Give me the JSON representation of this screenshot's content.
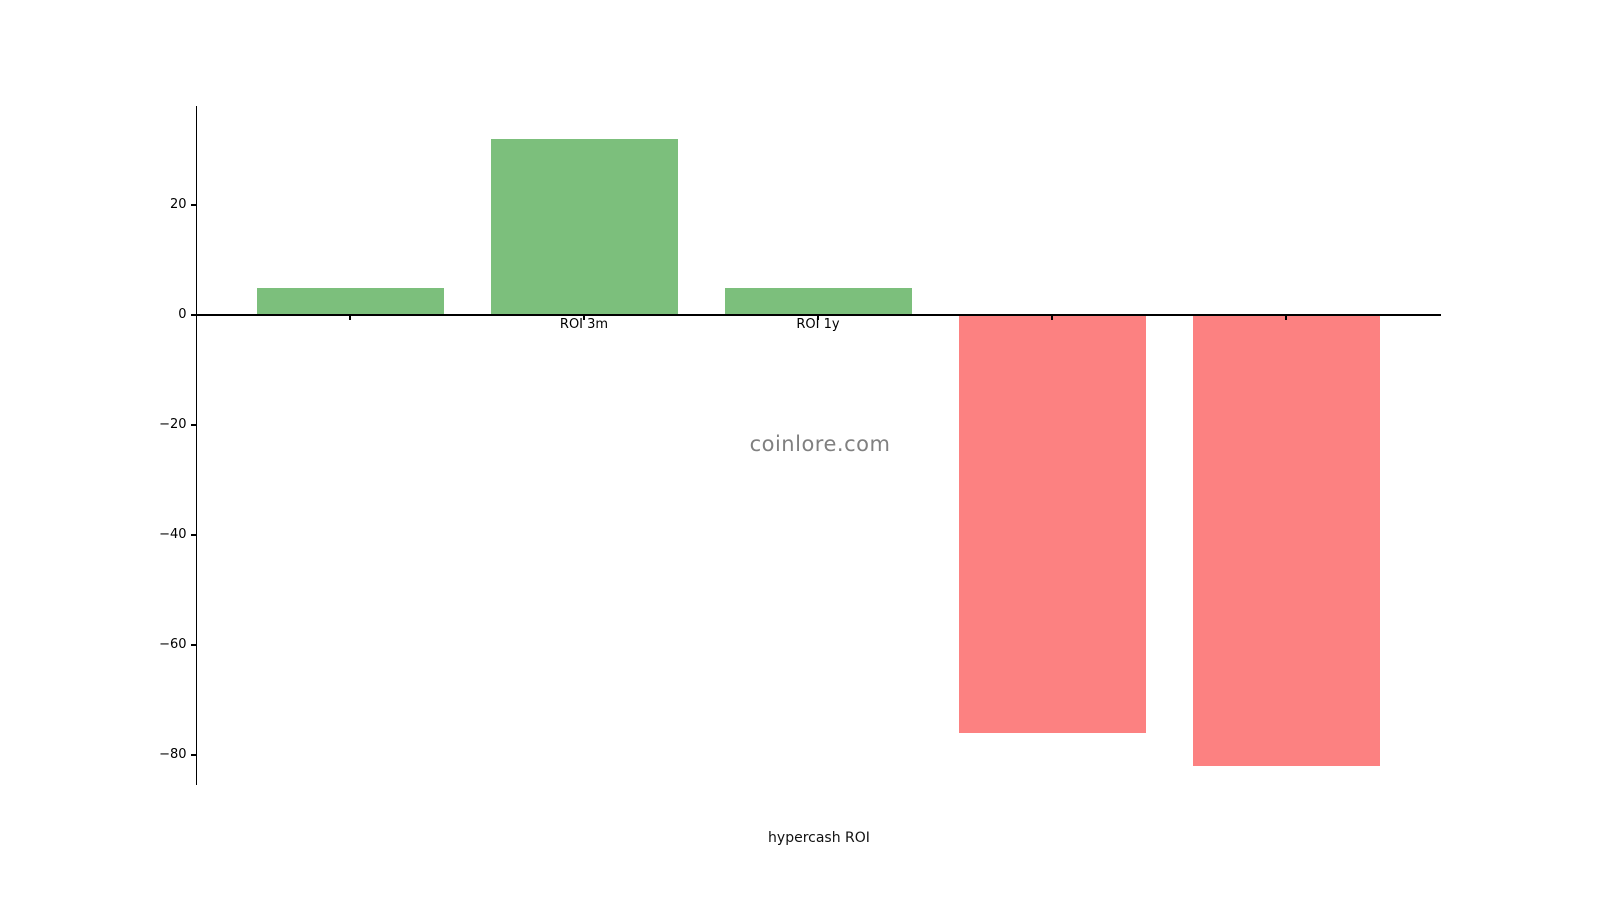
{
  "watermark": {
    "text": "coinlore.com",
    "color": "#808080"
  },
  "chart_data": {
    "type": "bar",
    "title": "hypercash ROI",
    "xlabel": "hypercash ROI",
    "ylabel": "",
    "categories": [
      "",
      "ROI 3m",
      "ROI 1y",
      "",
      ""
    ],
    "values": [
      5,
      32,
      5,
      -76,
      -82
    ],
    "yticks": {
      "values": [
        20,
        0,
        -20,
        -40,
        -60,
        -80
      ],
      "labels": [
        "20",
        "0",
        "−20",
        "−40",
        "−60",
        "−80"
      ]
    },
    "ylim": [
      -85.5,
      38
    ],
    "grid": false,
    "legend": "none",
    "colors": {
      "positive": "#7CBF7C",
      "negative": "#FC8181",
      "axis": "#000000",
      "tick_text": "#000000",
      "watermark": "#808080"
    }
  }
}
